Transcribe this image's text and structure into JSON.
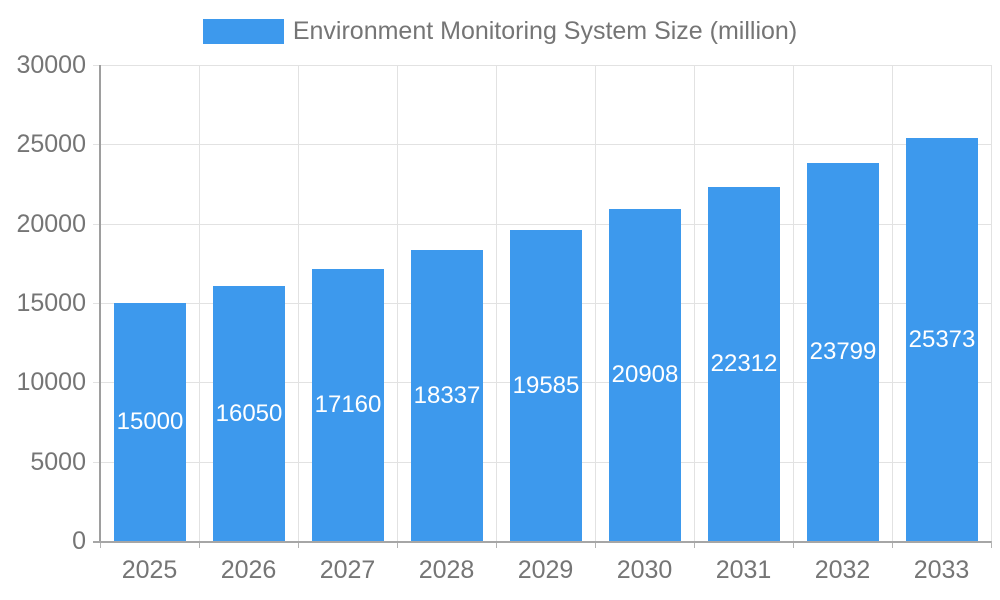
{
  "legend": {
    "items": [
      {
        "label": "Environment Monitoring System Size (million)"
      }
    ]
  },
  "colors": {
    "bar": "#3d99ed",
    "axis_text": "#757575",
    "grid_line": "#e2e2e2",
    "axis_line_y": "#9e9e9e",
    "axis_line_x": "#a6a6a6",
    "tick_line": "#b3b3b3",
    "value_label": "#ffffff",
    "background": "#ffffff"
  },
  "chart_data": {
    "type": "bar",
    "title": "Environment Monitoring System Size (million)",
    "categories": [
      "2025",
      "2026",
      "2027",
      "2028",
      "2029",
      "2030",
      "2031",
      "2032",
      "2033"
    ],
    "values": [
      15000,
      16050,
      17160,
      18337,
      19585,
      20908,
      22312,
      23799,
      25373
    ],
    "value_labels": [
      "15000",
      "16050",
      "17160",
      "18337",
      "19585",
      "20908",
      "22312",
      "23799",
      "25373"
    ],
    "xlabel": "",
    "ylabel": "",
    "ylim": [
      0,
      30000
    ],
    "ytick_step": 5000,
    "yticks": [
      0,
      5000,
      10000,
      15000,
      20000,
      25000,
      30000
    ],
    "grid": true,
    "legend_position": "top",
    "value_label_position": "center-inside-bar"
  }
}
